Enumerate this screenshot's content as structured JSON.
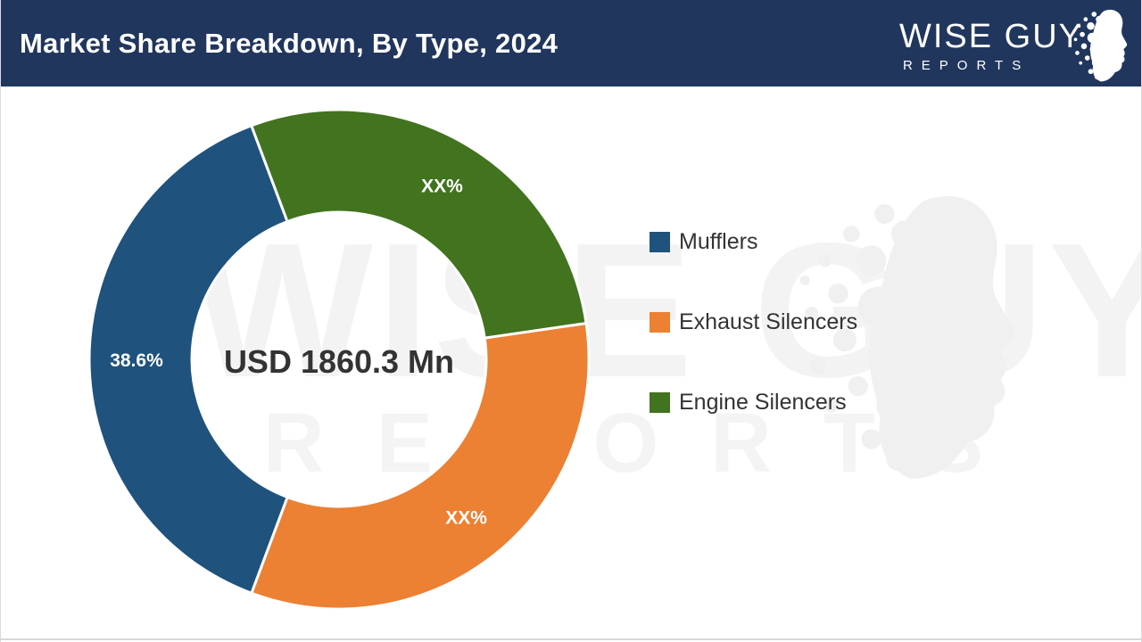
{
  "header": {
    "title": "Market Share Breakdown, By Type, 2024",
    "background_color": "#21365D",
    "logo": {
      "brand_line1": "WISE GUY",
      "brand_line2": "REPORTS"
    }
  },
  "watermark": {
    "line1": "WISE GUY",
    "line2": "REPORTS"
  },
  "chart_data": {
    "type": "donut",
    "title": "Market Share Breakdown, By Type, 2024",
    "center_label": "USD 1860.3 Mn",
    "units": "percent market share",
    "legend_position": "right",
    "inner_radius_ratio": 0.59,
    "start_angle_deg": 249.5,
    "clockwise_draw_order": [
      0,
      2,
      1
    ],
    "values_estimated_from_arcs": [
      "Exhaust Silencers",
      "Engine Silencers"
    ],
    "segments": [
      {
        "name": "Mufflers",
        "slice_label": "38.6%",
        "value_pct": 38.6,
        "color": "#1F527C"
      },
      {
        "name": "Exhaust Silencers",
        "slice_label": "XX%",
        "value_pct": 33.0,
        "color": "#EC8033"
      },
      {
        "name": "Engine Silencers",
        "slice_label": "XX%",
        "value_pct": 28.4,
        "color": "#42731F"
      }
    ]
  }
}
